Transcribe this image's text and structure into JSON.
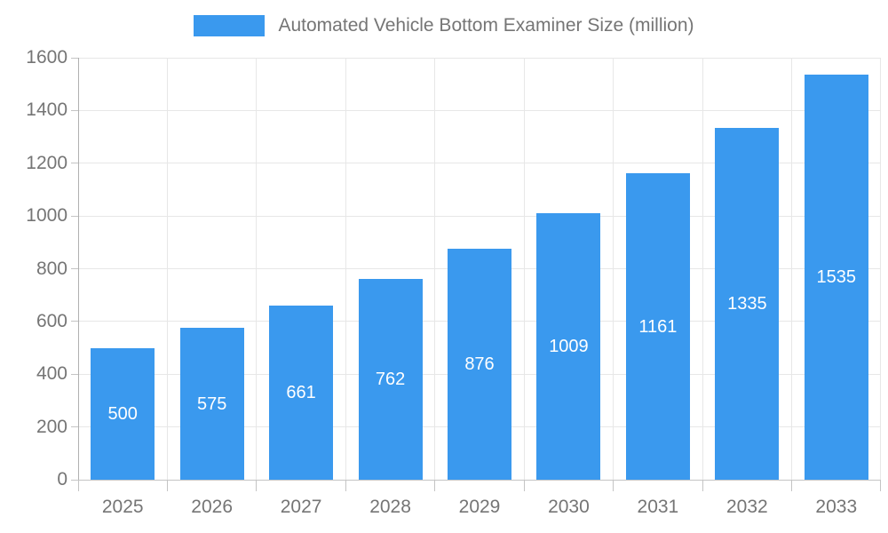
{
  "chart_data": {
    "type": "bar",
    "title": "Automated Vehicle Bottom Examiner Size (million)",
    "categories": [
      "2025",
      "2026",
      "2027",
      "2028",
      "2029",
      "2030",
      "2031",
      "2032",
      "2033"
    ],
    "values": [
      500,
      575,
      661,
      762,
      876,
      1009,
      1161,
      1335,
      1535
    ],
    "xlabel": "",
    "ylabel": "",
    "ylim": [
      0,
      1600
    ],
    "ytick_step": 200,
    "ytick_labels": [
      "0",
      "200",
      "400",
      "600",
      "800",
      "1000",
      "1200",
      "1400",
      "1600"
    ],
    "grid": true,
    "legend_position": "top-center",
    "value_label_position": "inside-center",
    "colors": {
      "bar": "#3A99EE",
      "grid": "#E7E7E7",
      "axis_line": "#B0B0B0",
      "tick": "#C4C4C4",
      "axis_text": "#757575",
      "value_label": "#FFFFFF",
      "background": "#FFFFFF"
    }
  }
}
